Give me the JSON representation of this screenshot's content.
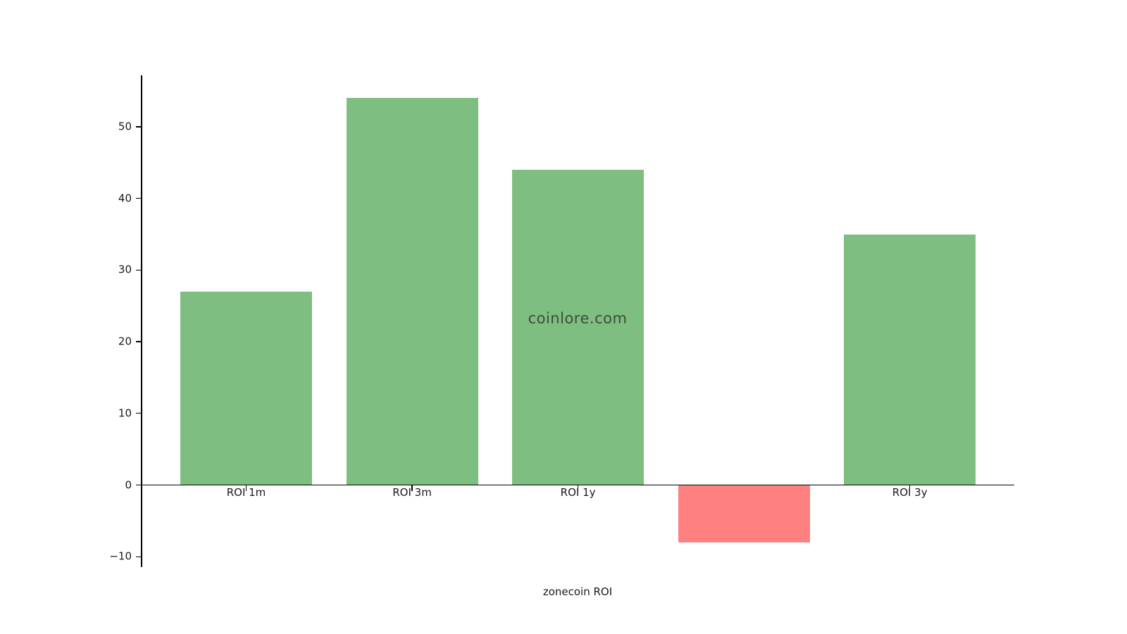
{
  "chart_data": {
    "type": "bar",
    "title": "",
    "xlabel": "zonecoin ROI",
    "ylabel": "",
    "categories": [
      "ROI 1m",
      "ROI 3m",
      "ROI 1y",
      "",
      "ROI 3y"
    ],
    "values": [
      27,
      54,
      44,
      -8,
      35
    ],
    "bar_colors": [
      "#7ebe80",
      "#7ebe80",
      "#7ebe80",
      "#ff8080",
      "#7ebe80"
    ],
    "positive_color": "#7ebe80",
    "negative_color": "#ff8080",
    "yticks": [
      -10,
      0,
      10,
      20,
      30,
      40,
      50
    ],
    "ytick_labels": [
      "−10",
      "0",
      "10",
      "20",
      "30",
      "40",
      "50"
    ],
    "ylim": [
      -11.5,
      57.2
    ],
    "grid": false,
    "legend": "none",
    "axis_color": "#000000",
    "tick_label_color": "#1a1a1a"
  },
  "watermark": {
    "text": "coinlore.com",
    "color": "#3f4c40"
  }
}
